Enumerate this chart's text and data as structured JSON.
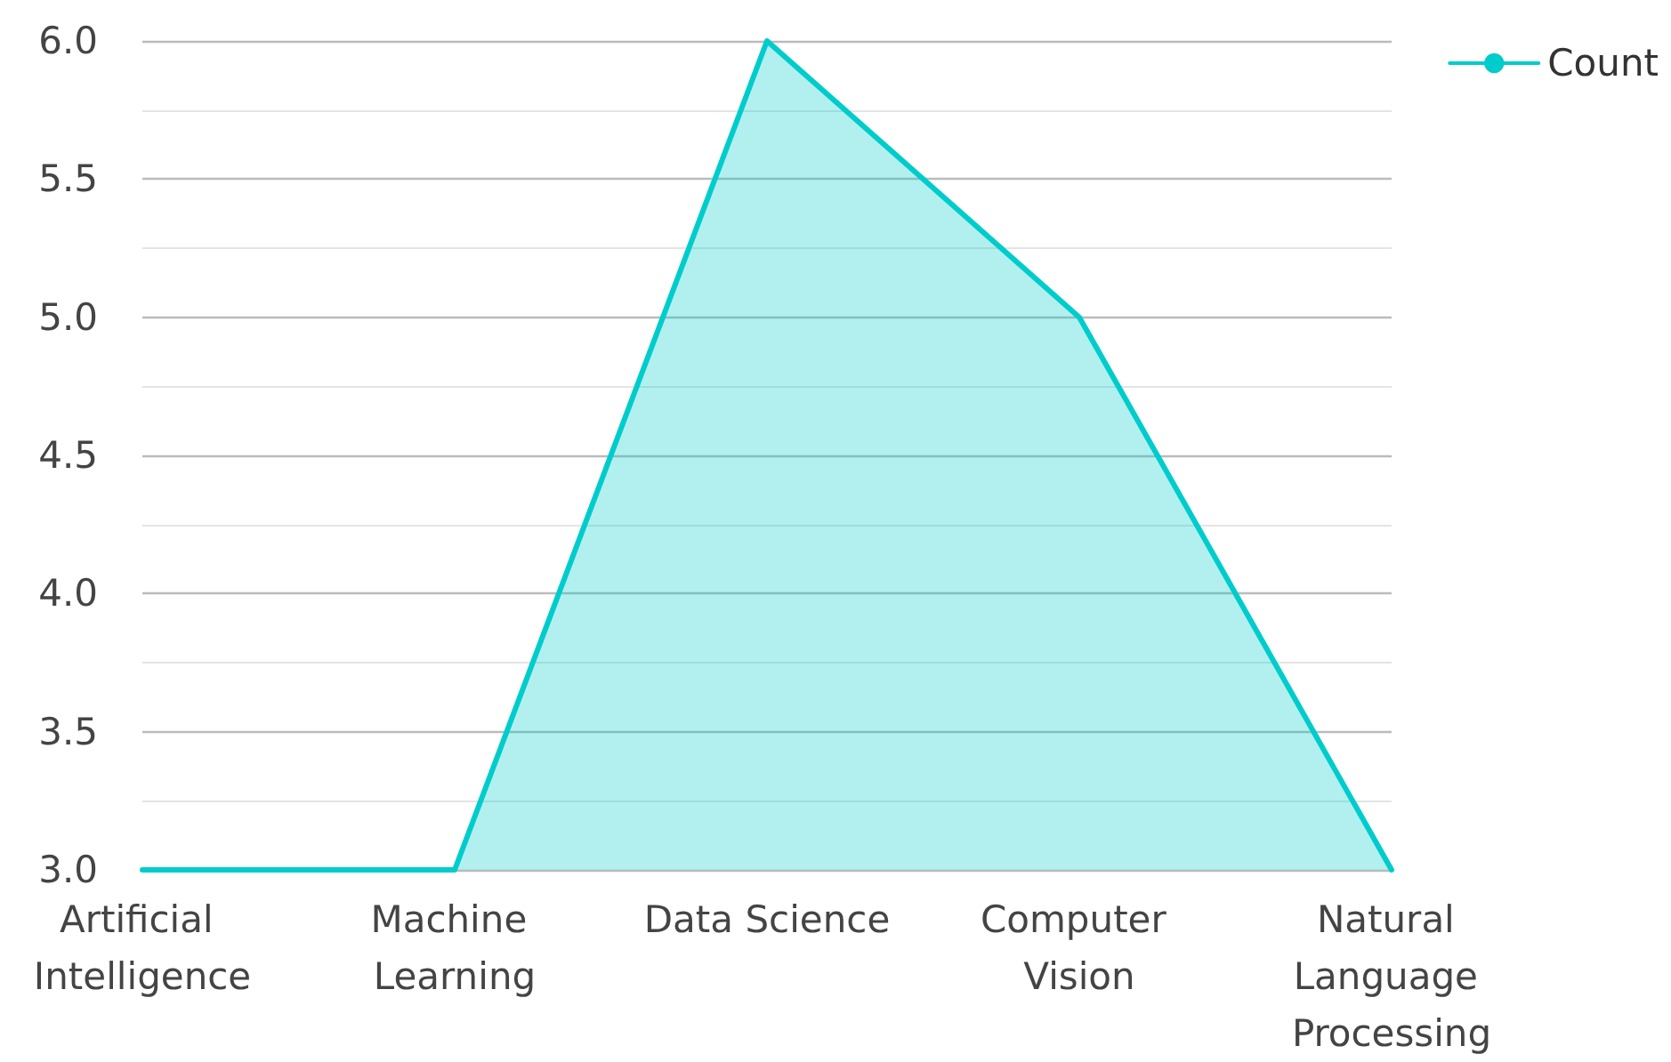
{
  "chart_data": {
    "type": "area",
    "categories": [
      "Artificial Intelligence",
      "Machine Learning",
      "Data Science",
      "Computer Vision",
      "Natural Language Processing"
    ],
    "series": [
      {
        "name": "Count",
        "color": "#00cccc",
        "values": [
          3,
          3,
          6,
          5,
          3
        ]
      }
    ],
    "ylim": [
      3,
      6
    ],
    "yticks": [
      {
        "value": 3,
        "label": "3.0"
      },
      {
        "value": 3.5,
        "label": "3.5"
      },
      {
        "value": 4,
        "label": "4.0"
      },
      {
        "value": 4.5,
        "label": "4.5"
      },
      {
        "value": 5,
        "label": "5.0"
      },
      {
        "value": 5.5,
        "label": "5.5"
      },
      {
        "value": 6,
        "label": "6.0"
      }
    ],
    "grid": "y",
    "legend": "top right",
    "marker": "none",
    "line_style": "solid"
  }
}
